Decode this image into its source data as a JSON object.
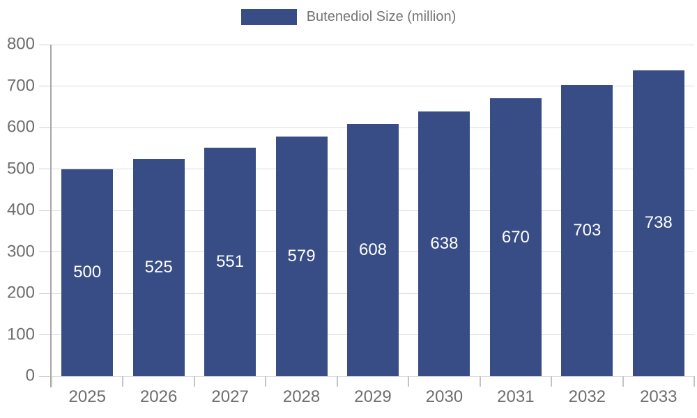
{
  "chart_data": {
    "type": "bar",
    "legend": "Butenediol Size (million)",
    "categories": [
      "2025",
      "2026",
      "2027",
      "2028",
      "2029",
      "2030",
      "2031",
      "2032",
      "2033"
    ],
    "values": [
      500,
      525,
      551,
      579,
      608,
      638,
      670,
      703,
      738
    ],
    "ylim": [
      0,
      800
    ],
    "yticks": [
      0,
      100,
      200,
      300,
      400,
      500,
      600,
      700,
      800
    ],
    "grid": true,
    "legend_position": "top-center",
    "colors": {
      "bar": "#384D85",
      "bar_label": "#ffffff",
      "axis_text": "#6e6e6e",
      "legend_text": "#757575",
      "gridline": "#dcdcdc",
      "axis_line": "#a6a6a6"
    }
  }
}
